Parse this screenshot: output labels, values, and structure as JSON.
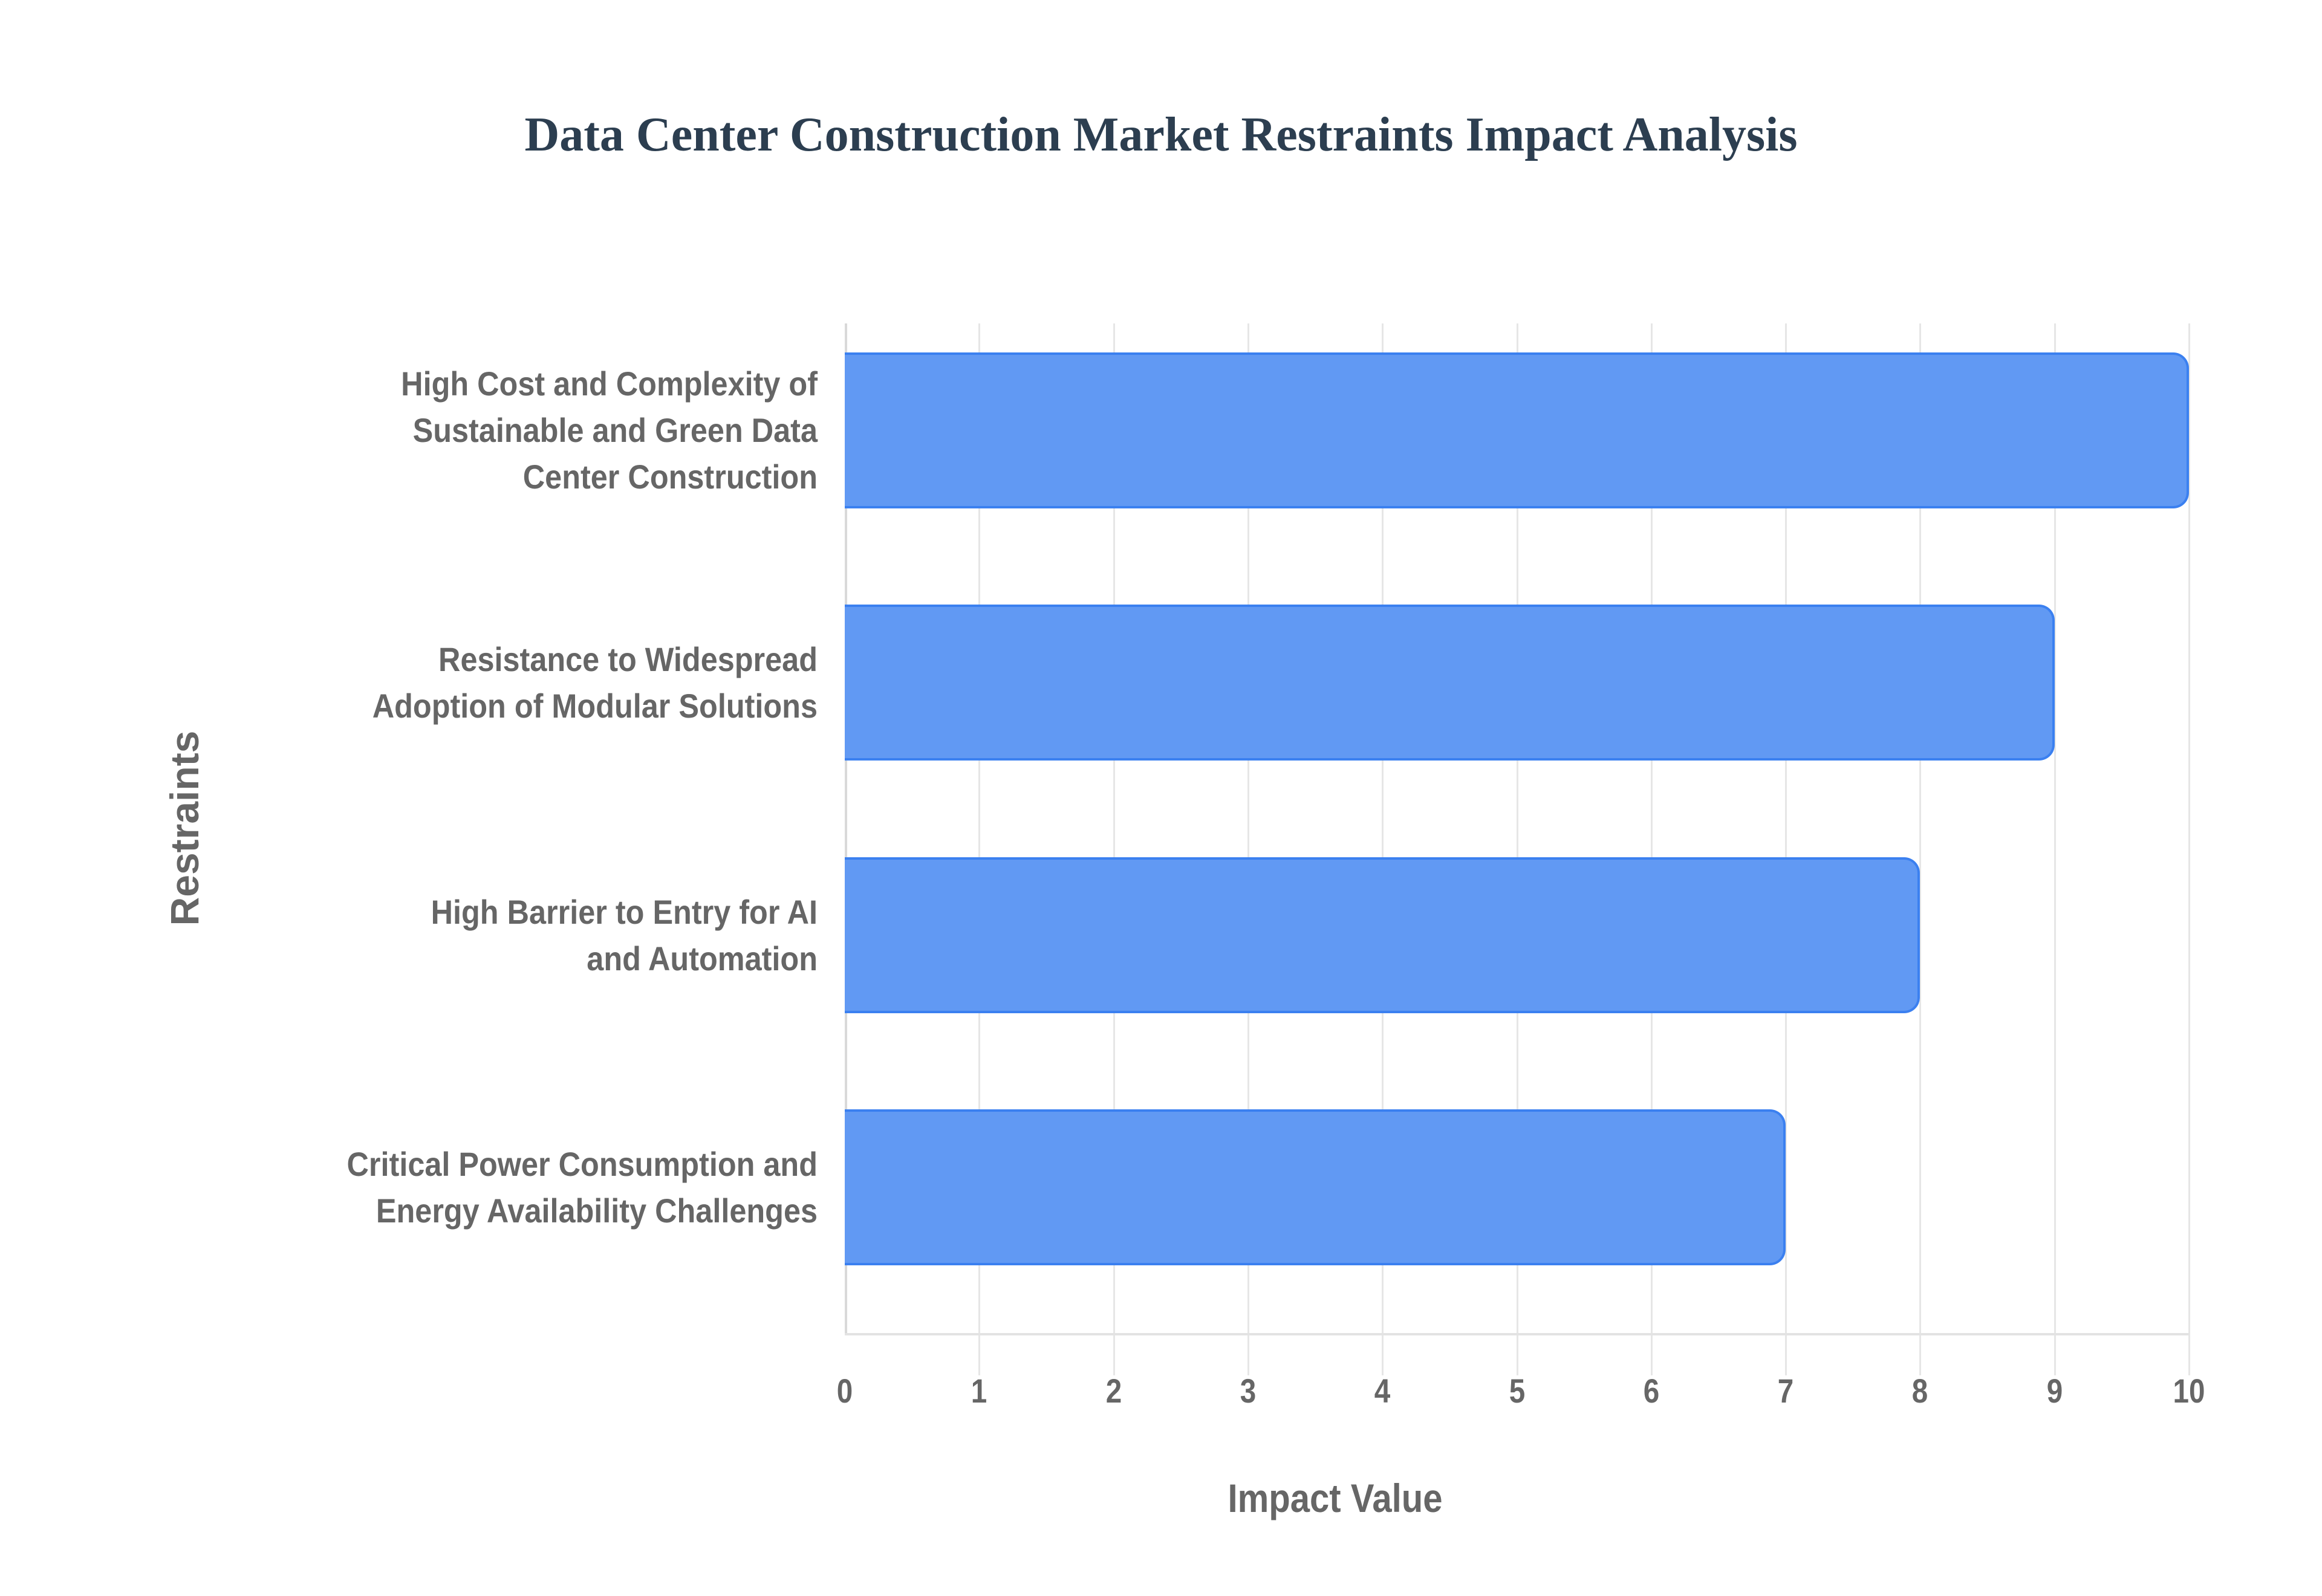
{
  "title": "Data Center Construction Market Restraints Impact Analysis",
  "colors": {
    "title": "#2c3e50",
    "bar_fill": "#6199f3",
    "bar_border": "#3b80f0",
    "label_text": "#666666",
    "gridline": "#e6e6e6",
    "background": "#ffffff"
  },
  "axes": {
    "x_title": "Impact Value",
    "y_title": "Restraints",
    "x_ticks": [
      "0",
      "1",
      "2",
      "3",
      "4",
      "5",
      "6",
      "7",
      "8",
      "9",
      "10"
    ]
  },
  "categories": [
    {
      "lines": [
        "High Cost and Complexity of",
        "Sustainable and Green Data",
        "Center Construction"
      ],
      "value": 10
    },
    {
      "lines": [
        "Resistance to Widespread",
        "Adoption of Modular Solutions"
      ],
      "value": 9
    },
    {
      "lines": [
        "High Barrier to Entry for AI",
        "and Automation"
      ],
      "value": 8
    },
    {
      "lines": [
        "Critical Power Consumption and",
        "Energy Availability Challenges"
      ],
      "value": 7
    }
  ],
  "chart_data": {
    "type": "bar",
    "orientation": "horizontal",
    "title": "Data Center Construction Market Restraints Impact Analysis",
    "categories": [
      "High Cost and Complexity of Sustainable and Green Data Center Construction",
      "Resistance to Widespread Adoption of Modular Solutions",
      "High Barrier to Entry for AI and Automation",
      "Critical Power Consumption and Energy Availability Challenges"
    ],
    "values": [
      10,
      9,
      8,
      7
    ],
    "xlabel": "Impact Value",
    "ylabel": "Restraints",
    "xlim": [
      0,
      10
    ],
    "x_ticks": [
      0,
      1,
      2,
      3,
      4,
      5,
      6,
      7,
      8,
      9,
      10
    ],
    "grid": {
      "vertical": true,
      "horizontal": false
    },
    "legend": null,
    "series": [
      {
        "name": "Impact Value",
        "values": [
          10,
          9,
          8,
          7
        ],
        "color": "#6199f3"
      }
    ]
  }
}
